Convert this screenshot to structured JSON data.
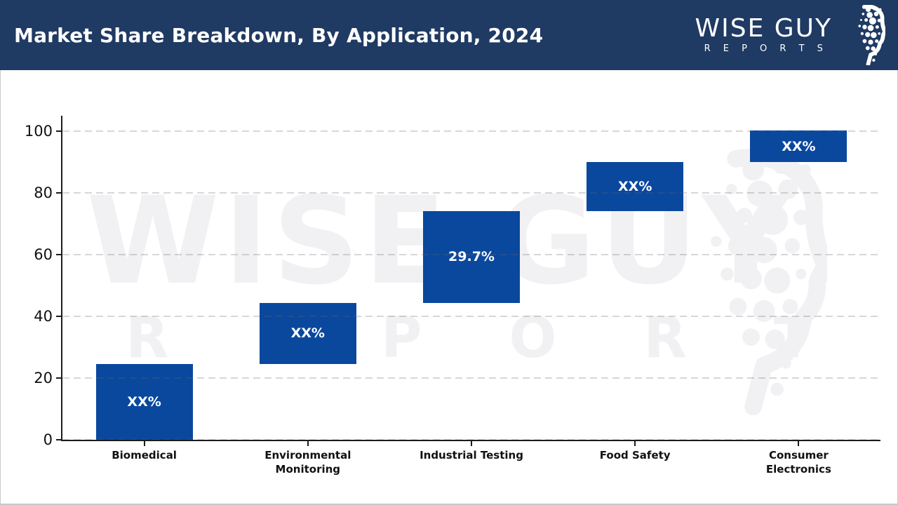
{
  "header": {
    "title": "Market Share Breakdown, By Application, 2024",
    "background_color": "#1f3a63",
    "logo": {
      "line1": "WISE GUY",
      "line2": "R E P O R T S"
    }
  },
  "watermark": {
    "line1": "WISE GUY",
    "line2": "R E P O R T S"
  },
  "chart_data": {
    "type": "bar",
    "variant": "waterfall",
    "title": "Market Share Breakdown, By Application, 2024",
    "xlabel": "",
    "ylabel": "",
    "ylim": [
      0,
      105
    ],
    "yticks": [
      0,
      20,
      40,
      60,
      80,
      100
    ],
    "grid": "horizontal dashed",
    "legend": "none",
    "bar_color": "#0a489e",
    "bar_label_color": "#ffffff",
    "categories": [
      "Biomedical",
      "Environmental Monitoring",
      "Industrial Testing",
      "Food Safety",
      "Consumer Electronics"
    ],
    "segments": [
      {
        "category": "Biomedical",
        "label_lines": [
          "Biomedical"
        ],
        "start": 0,
        "end": 24.6,
        "value_label": "XX%"
      },
      {
        "category": "Environmental Monitoring",
        "label_lines": [
          "Environmental",
          "Monitoring"
        ],
        "start": 24.6,
        "end": 44.4,
        "value_label": "XX%"
      },
      {
        "category": "Industrial Testing",
        "label_lines": [
          "Industrial Testing"
        ],
        "start": 44.4,
        "end": 74.1,
        "value_label": "29.7%"
      },
      {
        "category": "Food Safety",
        "label_lines": [
          "Food Safety"
        ],
        "start": 74.1,
        "end": 90.0,
        "value_label": "XX%"
      },
      {
        "category": "Consumer Electronics",
        "label_lines": [
          "Consumer",
          "Electronics"
        ],
        "start": 90.0,
        "end": 100.2,
        "value_label": "XX%"
      }
    ]
  }
}
